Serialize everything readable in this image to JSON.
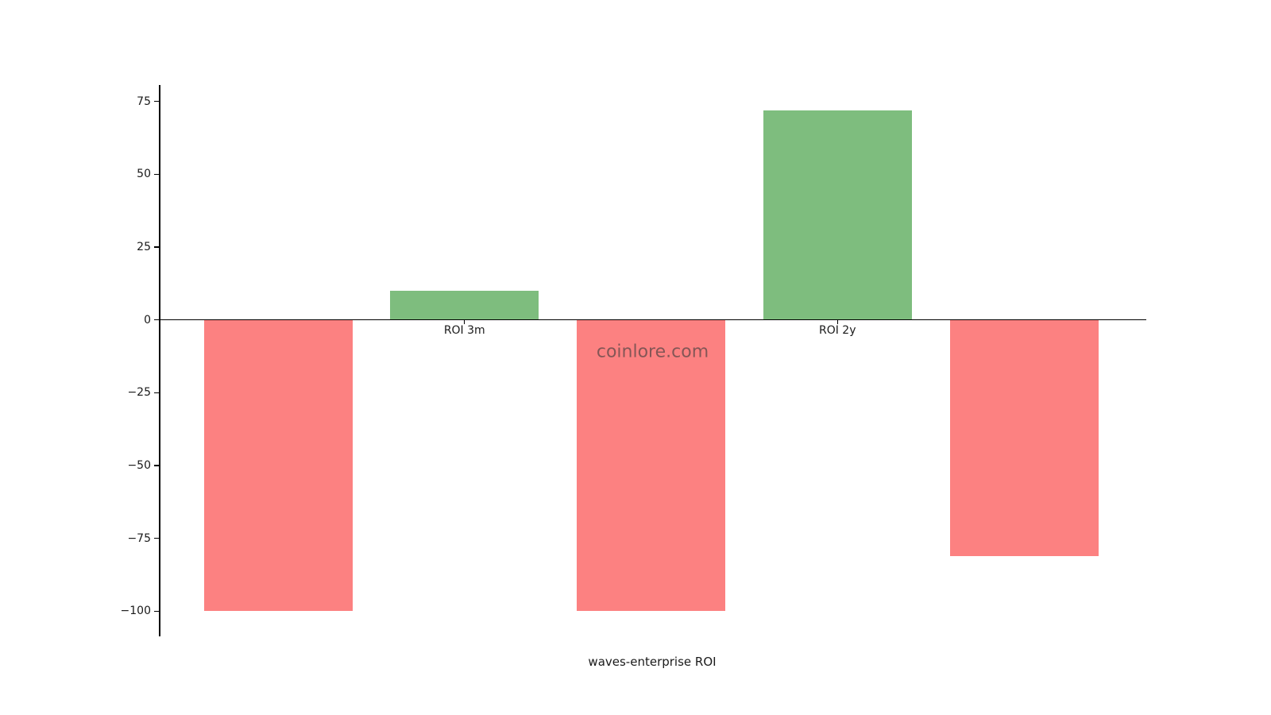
{
  "figure": {
    "background": "#ffffff",
    "watermark": {
      "text": "coinlore.com",
      "color": "#3c3c3c",
      "opacity": 0.62
    }
  },
  "chart_data": {
    "type": "bar",
    "title": "waves-enterprise ROI",
    "title_position": "bottom-center",
    "xlabel": "waves-enterprise ROI",
    "ylabel": "",
    "categories": [
      "",
      "ROI 3m",
      "",
      "ROI 2y",
      ""
    ],
    "values": [
      -100,
      10,
      -100,
      72,
      -81
    ],
    "series": [
      {
        "name": "waves-enterprise ROI",
        "values": [
          -100,
          10,
          -100,
          72,
          -81
        ]
      }
    ],
    "bar_colors": [
      "#fc8181",
      "#7ebd7e",
      "#fc8181",
      "#7ebd7e",
      "#fc8181"
    ],
    "positive_color": "#7ebd7e",
    "negative_color": "#fc8181",
    "yticks": [
      75,
      50,
      25,
      0,
      -25,
      -50,
      -75,
      -100
    ],
    "ylim": [
      -108.6,
      80.6
    ],
    "xtick_visible_indices": [
      1,
      3
    ],
    "xtick_labels_visible": [
      "ROI 3m",
      "ROI 2y"
    ],
    "grid": false,
    "legend": null,
    "axis_color": "#000000",
    "text_color": "#1a1a1a"
  }
}
